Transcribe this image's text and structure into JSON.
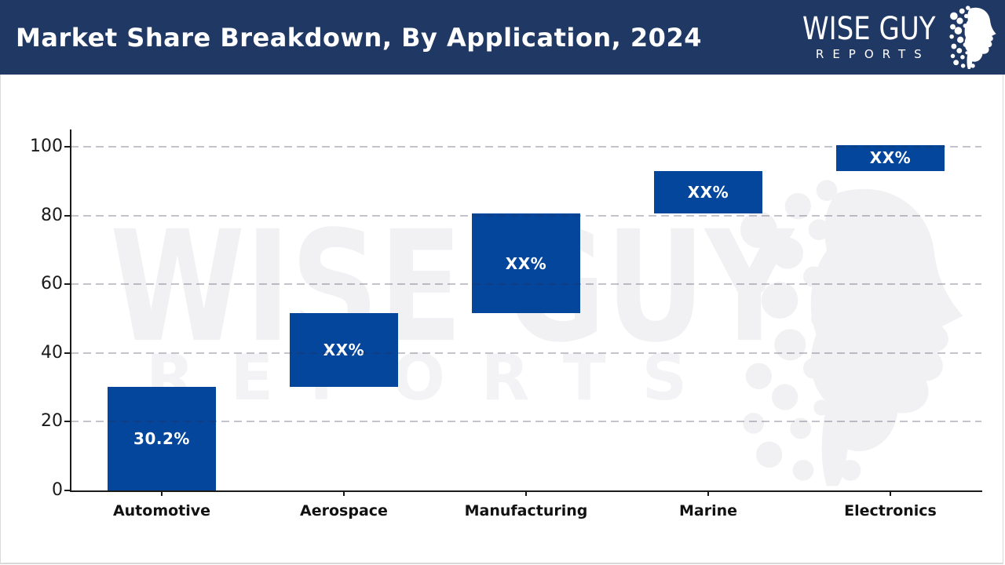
{
  "header": {
    "title": "Market Share Breakdown, By Application, 2024",
    "logo": {
      "line1": "WISE GUY",
      "line2": "REPORTS"
    }
  },
  "watermark": {
    "line1": "WISE GUY",
    "line2": "REPORTS"
  },
  "chart_data": {
    "type": "bar",
    "subtype": "waterfall",
    "title": "Market Share Breakdown, By Application, 2024",
    "xlabel": "",
    "ylabel": "",
    "categories": [
      "Automotive",
      "Aerospace",
      "Manufacturing",
      "Marine",
      "Electronics"
    ],
    "segments": [
      {
        "category": "Automotive",
        "start": 0,
        "end": 30.2,
        "label": "30.2%"
      },
      {
        "category": "Aerospace",
        "start": 30.2,
        "end": 51.5,
        "label": "XX%"
      },
      {
        "category": "Manufacturing",
        "start": 51.5,
        "end": 80.5,
        "label": "XX%"
      },
      {
        "category": "Marine",
        "start": 80.5,
        "end": 93,
        "label": "XX%"
      },
      {
        "category": "Electronics",
        "start": 93,
        "end": 100.5,
        "label": "XX%"
      }
    ],
    "yticks": [
      0,
      20,
      40,
      60,
      80,
      100
    ],
    "ylim": [
      0,
      105
    ],
    "grid": "dashed-horizontal",
    "legend": "none",
    "bar_color": "#04469C",
    "label_color": "#ffffff"
  },
  "colors": {
    "header_bg": "#203864",
    "bar": "#04469C",
    "axis": "#1a1a1a",
    "watermark": "#f1f1f3",
    "border": "#d9d9d9"
  }
}
